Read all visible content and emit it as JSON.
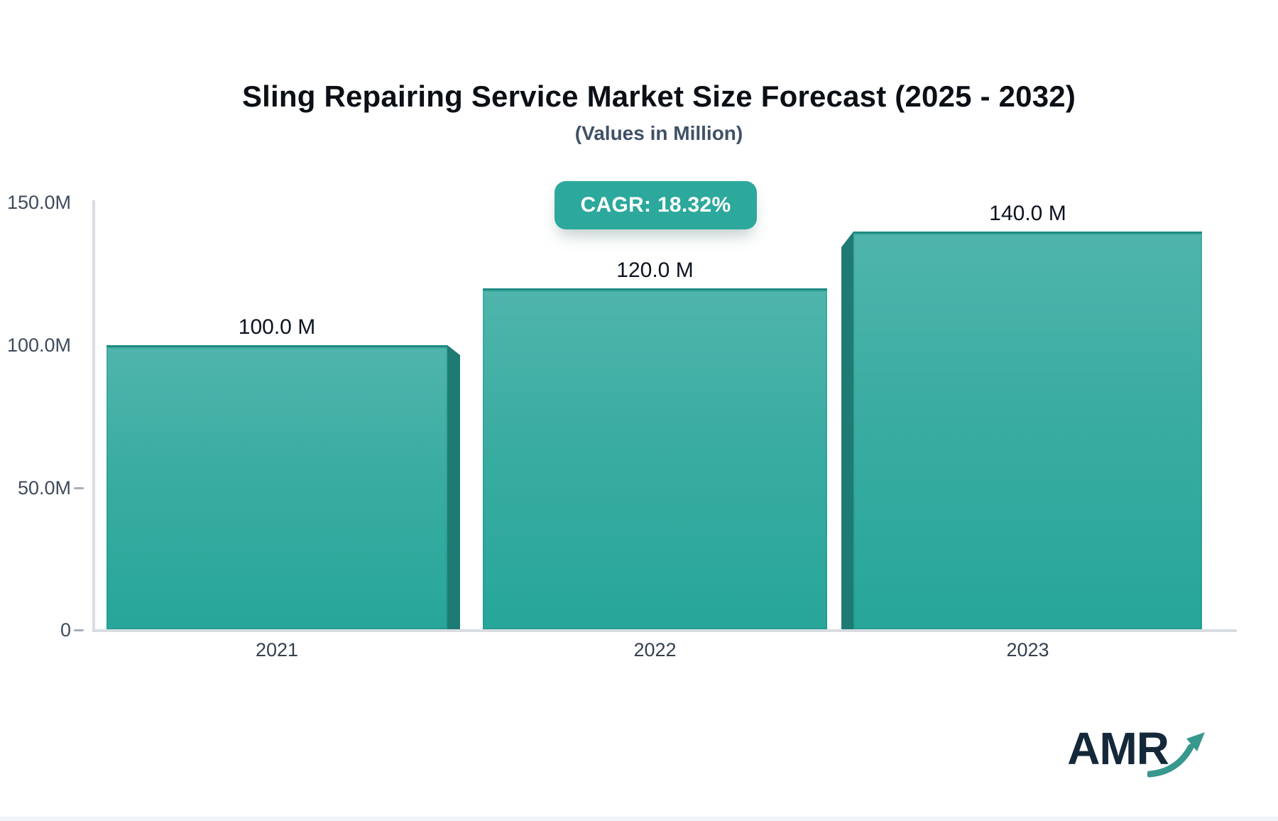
{
  "header": {
    "title": "Sling Repairing Service Market Size Forecast (2025 - 2032)",
    "subtitle": "(Values in Million)",
    "cagr_badge": "CAGR: 18.32%"
  },
  "chart_data": {
    "type": "bar",
    "title": "Sling Repairing Service Market Size Forecast (2025 - 2032)",
    "subtitle": "(Values in Million)",
    "cagr_percent": 18.32,
    "categories": [
      "2021",
      "2022",
      "2023"
    ],
    "values": [
      100.0,
      120.0,
      140.0
    ],
    "bar_labels": [
      "100.0 M",
      "120.0 M",
      "140.0 M"
    ],
    "unit": "Million",
    "y_axis": {
      "ticks": [
        "150.0M",
        "100.0M",
        "50.0M",
        "0"
      ],
      "range": [
        0,
        150
      ]
    },
    "grid": "off",
    "legend": "none",
    "bar_color_top": "#4fb5ac",
    "bar_color_bottom": "#27a69a",
    "bar_bevel_color": "#1e7b74"
  },
  "colors": {
    "badge_background": "#2ca89c",
    "axis_line": "#d9dce1",
    "title_text": "#0b1016",
    "subtitle_text": "#3f5166"
  },
  "logo": {
    "text": "AMR",
    "icon": "growth-arrow-icon"
  }
}
